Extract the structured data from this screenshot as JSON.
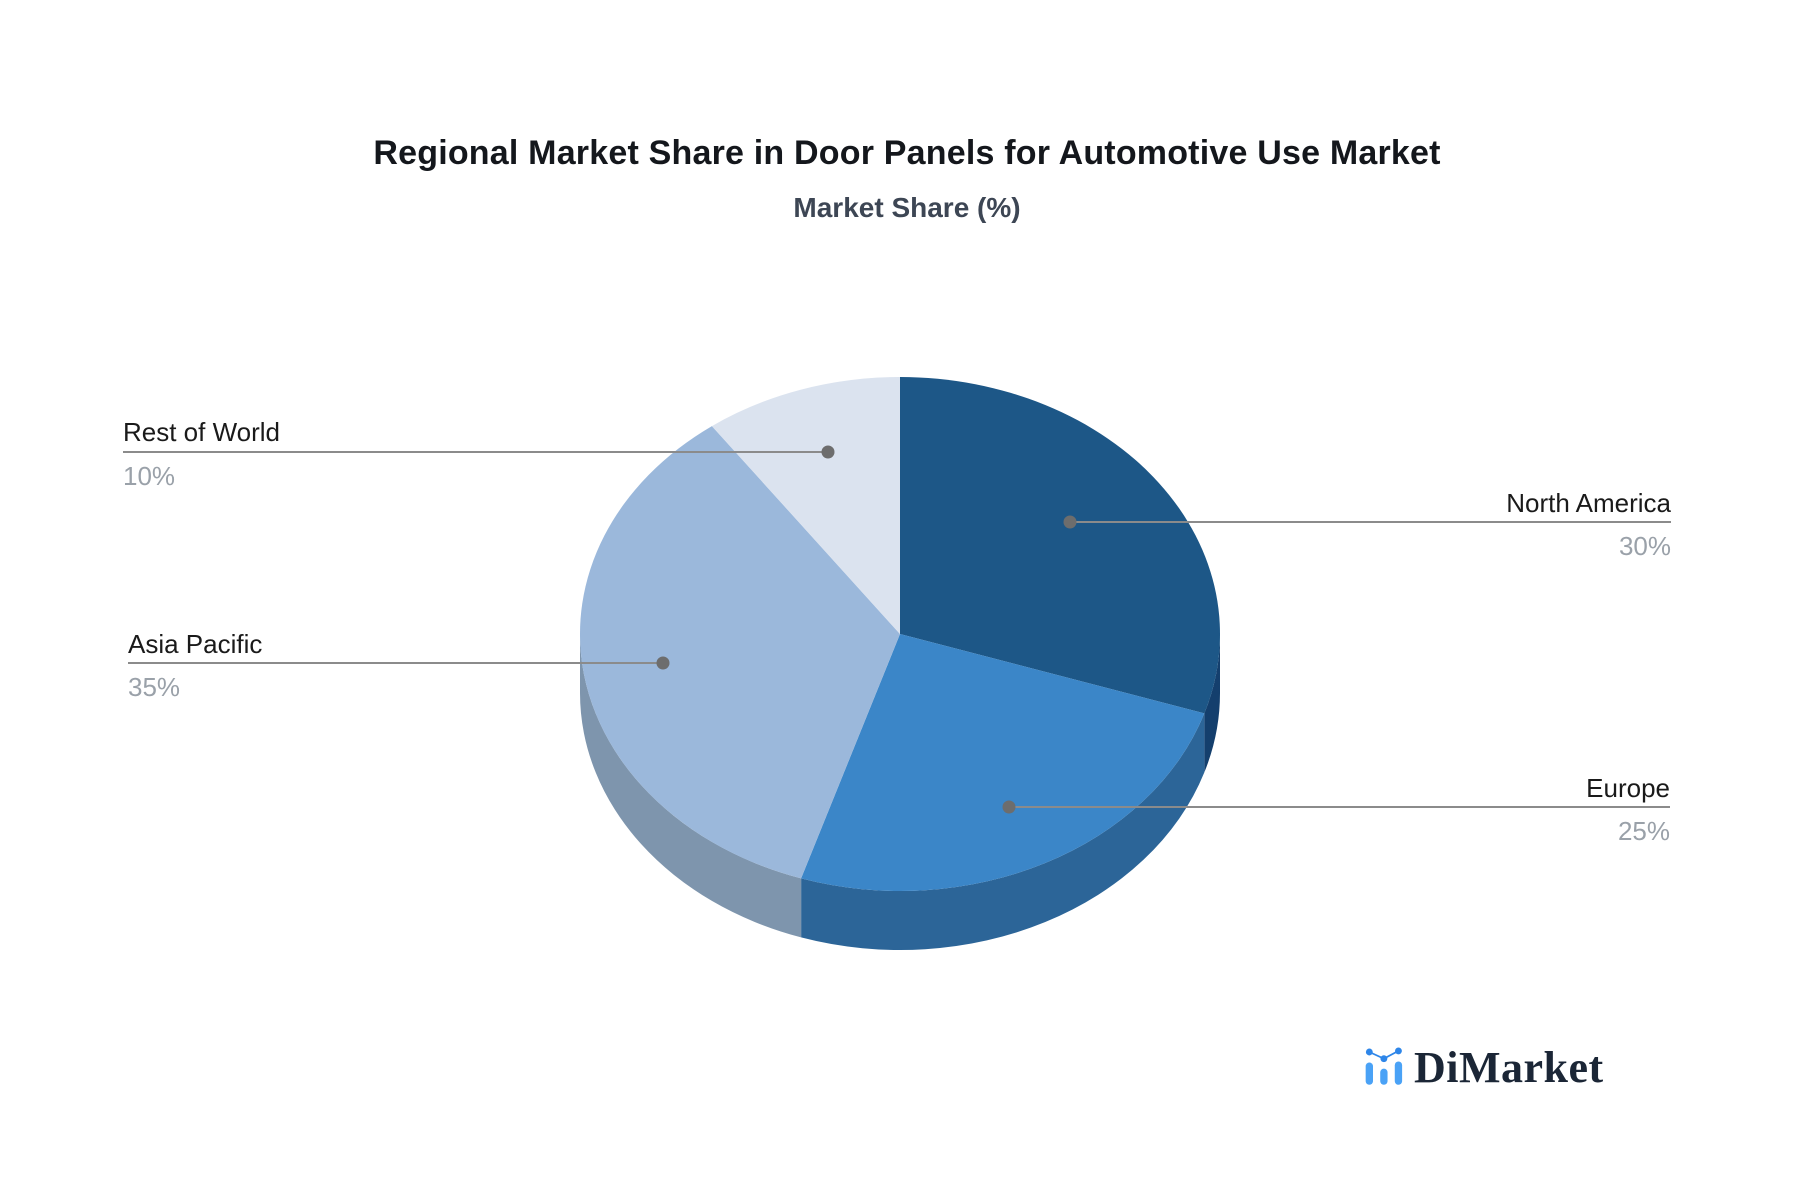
{
  "header": {
    "title": "Regional Market Share in Door Panels for Automotive Use Market",
    "subtitle": "Market Share (%)"
  },
  "chart_data": {
    "type": "pie",
    "title": "Regional Market Share in Door Panels for Automotive Use Market",
    "subtitle": "Market Share (%)",
    "unit": "%",
    "style": "3d-pie",
    "start_angle_deg": -90,
    "direction": "clockwise",
    "legend_position": "none",
    "slices": [
      {
        "label": "North America",
        "value": 30,
        "pct_label": "30%",
        "color": "#1d5787",
        "side_color": "#143f6d"
      },
      {
        "label": "Europe",
        "value": 25,
        "pct_label": "25%",
        "color": "#3b86c8",
        "side_color": "#2c6598"
      },
      {
        "label": "Asia Pacific",
        "value": 35,
        "pct_label": "35%",
        "color": "#9bb8db",
        "side_color": "#7e95ad"
      },
      {
        "label": "Rest of World",
        "value": 10,
        "pct_label": "10%",
        "color": "#dbe3ef",
        "side_color": "#b9c4d6"
      }
    ],
    "labels_style": {
      "name_color": "#1a1a1a",
      "pct_color": "#9aa1a9",
      "leader_line_color": "#8b8b8b",
      "leader_dot_color": "#6d6d6d"
    }
  },
  "branding": {
    "logo_text": "DiMarket",
    "icon": "bar-line-chart-icon",
    "text_color": "#1b2636",
    "icon_bar_color": "#4aa2f6",
    "icon_dot_color": "#2e86e9"
  }
}
